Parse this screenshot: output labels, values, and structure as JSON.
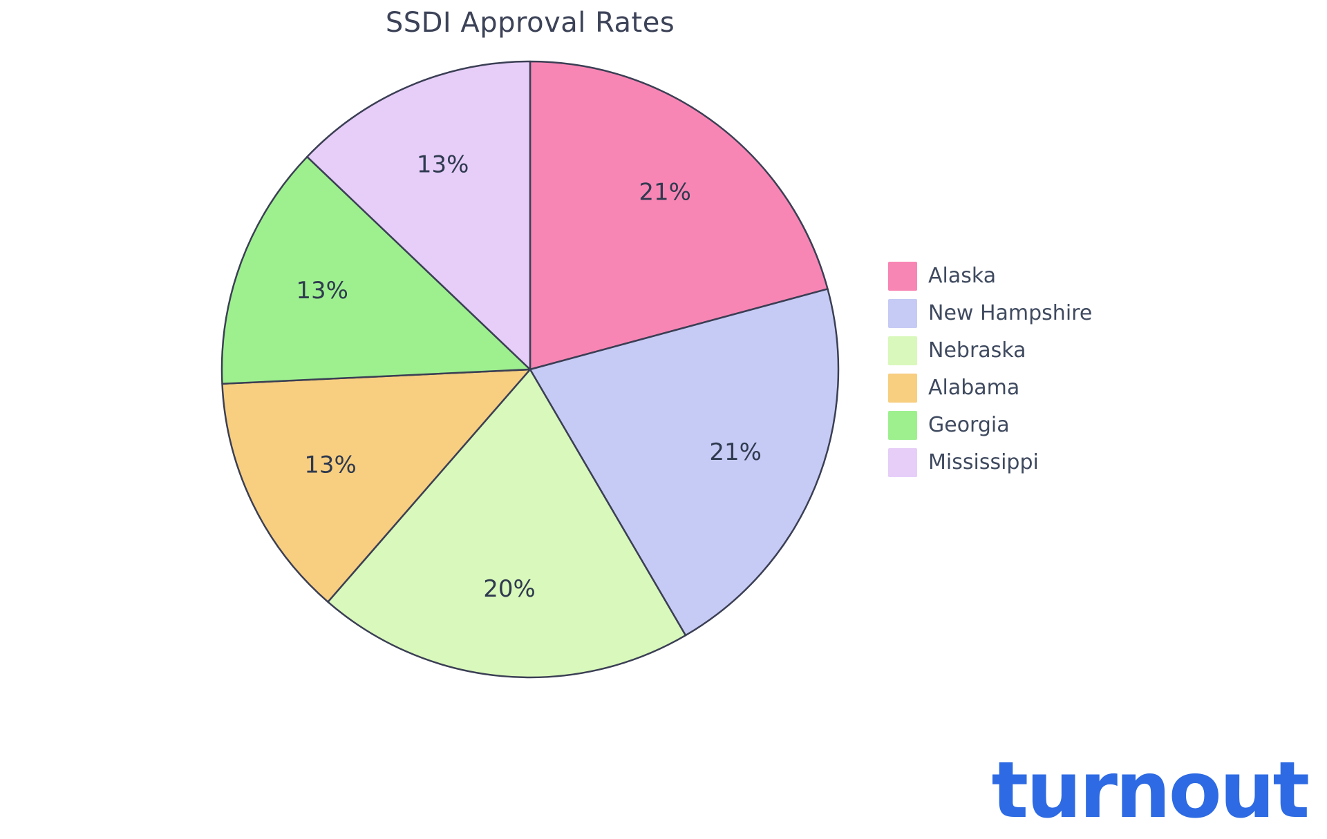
{
  "chart_data": {
    "type": "pie",
    "title": "SSDI Approval Rates",
    "labels": [
      "Alaska",
      "New Hampshire",
      "Nebraska",
      "Alabama",
      "Georgia",
      "Mississippi"
    ],
    "values": [
      21,
      21,
      20,
      13,
      13,
      13
    ],
    "percent_labels": [
      "21%",
      "21%",
      "20%",
      "13%",
      "13%",
      "13%"
    ],
    "colors": [
      "#F886B5",
      "#C6CBF5",
      "#D9F8BB",
      "#F8CE80",
      "#9EF08F",
      "#E6CEF9"
    ],
    "slice_stroke_color": "#3b3f54",
    "slice_stroke_width": 2.5,
    "start_angle": "top",
    "direction": "clockwise",
    "label_radius_fraction": 0.72,
    "legend_position": "right",
    "legend_entries": [
      "Alaska",
      "New Hampshire",
      "Nebraska",
      "Alabama",
      "Georgia",
      "Mississippi"
    ]
  },
  "branding": {
    "logo_text": "turnout",
    "logo_color": "#2d6ae3"
  }
}
